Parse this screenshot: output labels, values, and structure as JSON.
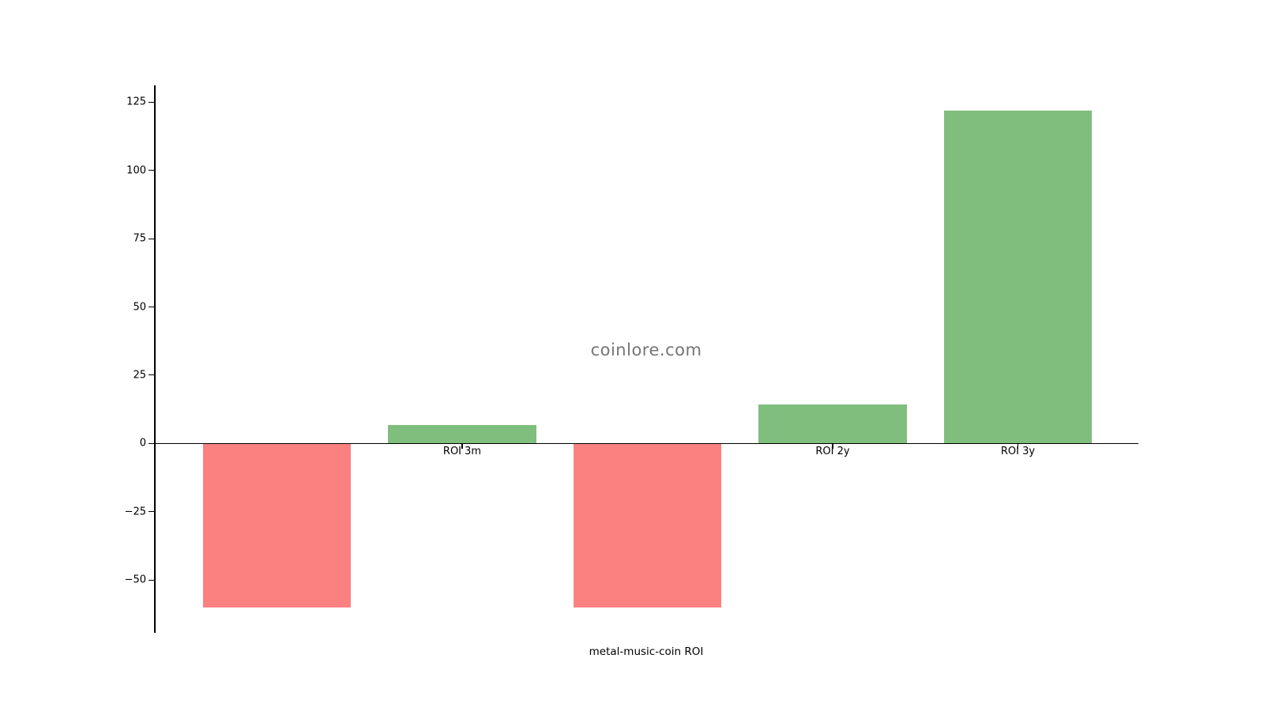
{
  "page": {
    "background": "#ffffff"
  },
  "watermark": {
    "text": "coinlore.com",
    "color": "#757575"
  },
  "chart_data": {
    "type": "bar",
    "title": "",
    "xlabel": "metal-music-coin ROI",
    "ylabel": "",
    "categories": [
      "",
      "ROI 3m",
      "",
      "ROI 2y",
      "ROI 3y"
    ],
    "values": [
      -60,
      6.8,
      -60,
      14.4,
      122
    ],
    "y_ticks": [
      125,
      100,
      75,
      50,
      25,
      0,
      -25,
      -50
    ],
    "ylim": [
      -69,
      131
    ],
    "grid": false,
    "legend_position": "none",
    "colors": {
      "positive_bar": "#7fbe7d",
      "negative_bar": "#fb8181",
      "axis": "#000000",
      "tick_text": "#000000"
    }
  }
}
